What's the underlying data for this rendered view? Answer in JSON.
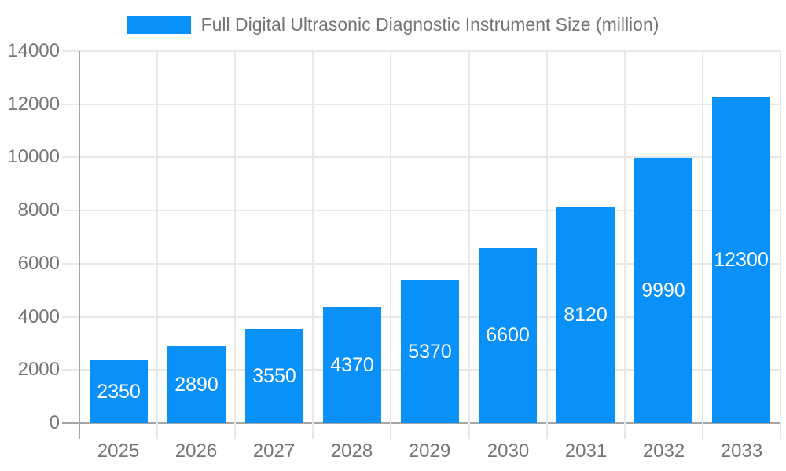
{
  "chart_data": {
    "type": "bar",
    "title": "Full Digital Ultrasonic Diagnostic Instrument Size (million)",
    "categories": [
      "2025",
      "2026",
      "2027",
      "2028",
      "2029",
      "2030",
      "2031",
      "2032",
      "2033"
    ],
    "values": [
      2350,
      2890,
      3550,
      4370,
      5370,
      6600,
      8120,
      9990,
      12300
    ],
    "xlabel": "",
    "ylabel": "",
    "ylim": [
      0,
      14000
    ],
    "yticks": [
      0,
      2000,
      4000,
      6000,
      8000,
      10000,
      12000,
      14000
    ],
    "grid": true,
    "legend_position": "top-center",
    "colors": {
      "bar": "#0991F9",
      "value_label": "#ffffff",
      "axis_label": "#757575",
      "legend_label": "#757575",
      "gridline": "#e8e8e8",
      "axis_line": "#a6a6a6",
      "background": "#ffffff"
    }
  }
}
